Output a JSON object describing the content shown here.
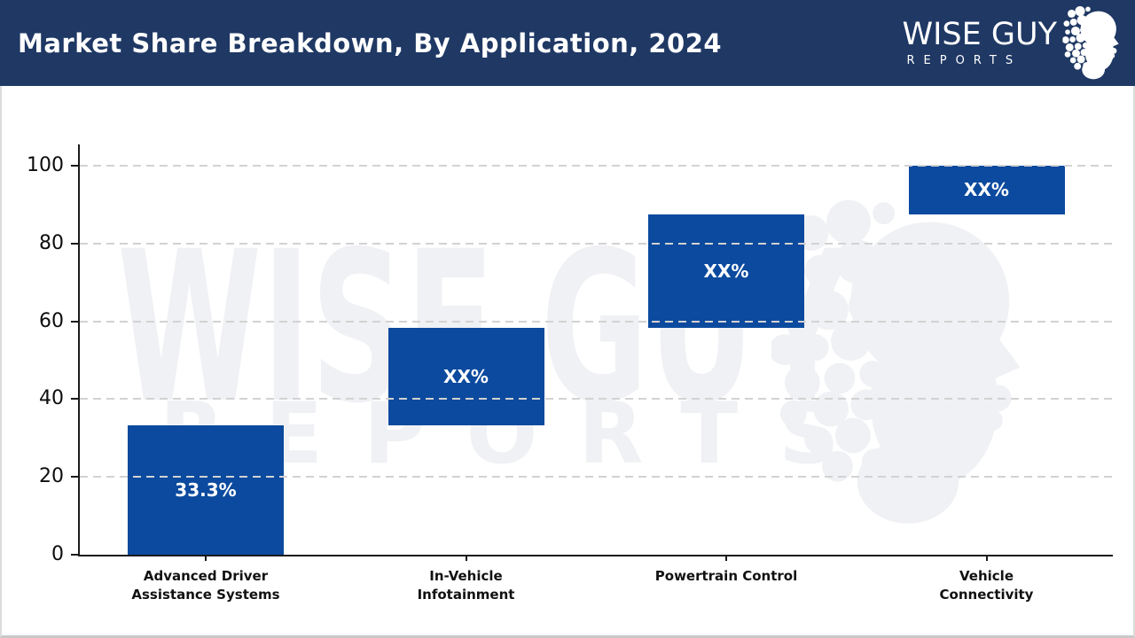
{
  "header": {
    "title": "Market Share Breakdown, By Application, 2024",
    "bg_color": "#1f3864",
    "logo_text": "WISE GUY",
    "logo_subtext": "REPORTS"
  },
  "watermark": {
    "text_large": "WISE GUY",
    "text_small": "REPORTS"
  },
  "chart_data": {
    "type": "bar",
    "variant": "floating-waterfall",
    "title": "Market Share Breakdown, By Application, 2024",
    "categories": [
      "Advanced Driver\nAssistance Systems",
      "In-Vehicle\nInfotainment",
      "Powertrain Control",
      "Vehicle\nConnectivity"
    ],
    "series": [
      {
        "name": "Market Share",
        "segments": [
          {
            "start": 0,
            "end": 33.3,
            "label": "33.3%"
          },
          {
            "start": 33.3,
            "end": 58.3,
            "label": "XX%"
          },
          {
            "start": 58.3,
            "end": 87.5,
            "label": "XX%"
          },
          {
            "start": 87.5,
            "end": 100,
            "label": "XX%"
          }
        ]
      }
    ],
    "yticks": [
      0,
      20,
      40,
      60,
      80,
      100
    ],
    "ylim": [
      0,
      106
    ],
    "grid": {
      "axis": "y",
      "style": "dashed",
      "color": "#d2d2d2",
      "above_bars": true
    },
    "bar_color": "#0b4a9e",
    "bar_label_color": "#ffffff",
    "legend": "none"
  }
}
